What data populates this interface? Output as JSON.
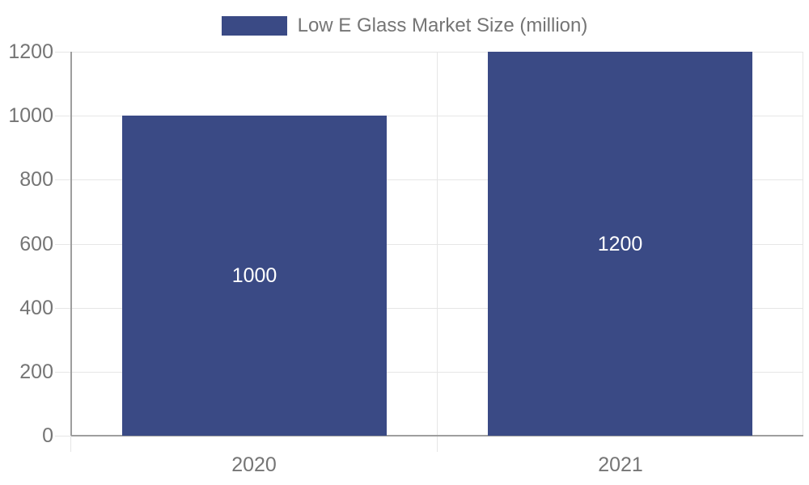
{
  "legend": {
    "label": "Low E Glass Market Size (million)"
  },
  "chart_data": {
    "type": "bar",
    "categories": [
      "2020",
      "2021"
    ],
    "series": [
      {
        "name": "Low E Glass Market Size (million)",
        "values": [
          1000,
          1200
        ]
      }
    ],
    "value_labels": [
      "1000",
      "1200"
    ],
    "title": "",
    "xlabel": "",
    "ylabel": "",
    "ylim": [
      0,
      1200
    ],
    "yticks": [
      0,
      200,
      400,
      600,
      800,
      1000,
      1200
    ],
    "grid": true,
    "legend_position": "top"
  },
  "colors": {
    "bar": "#3A4A85",
    "legend_text": "#757575",
    "tick_text": "#757575",
    "category_text": "#757575",
    "value_text": "#FFFFFF",
    "gridline": "#E6E6E6",
    "axis_line": "#9E9E9E",
    "background": "#FFFFFF"
  }
}
